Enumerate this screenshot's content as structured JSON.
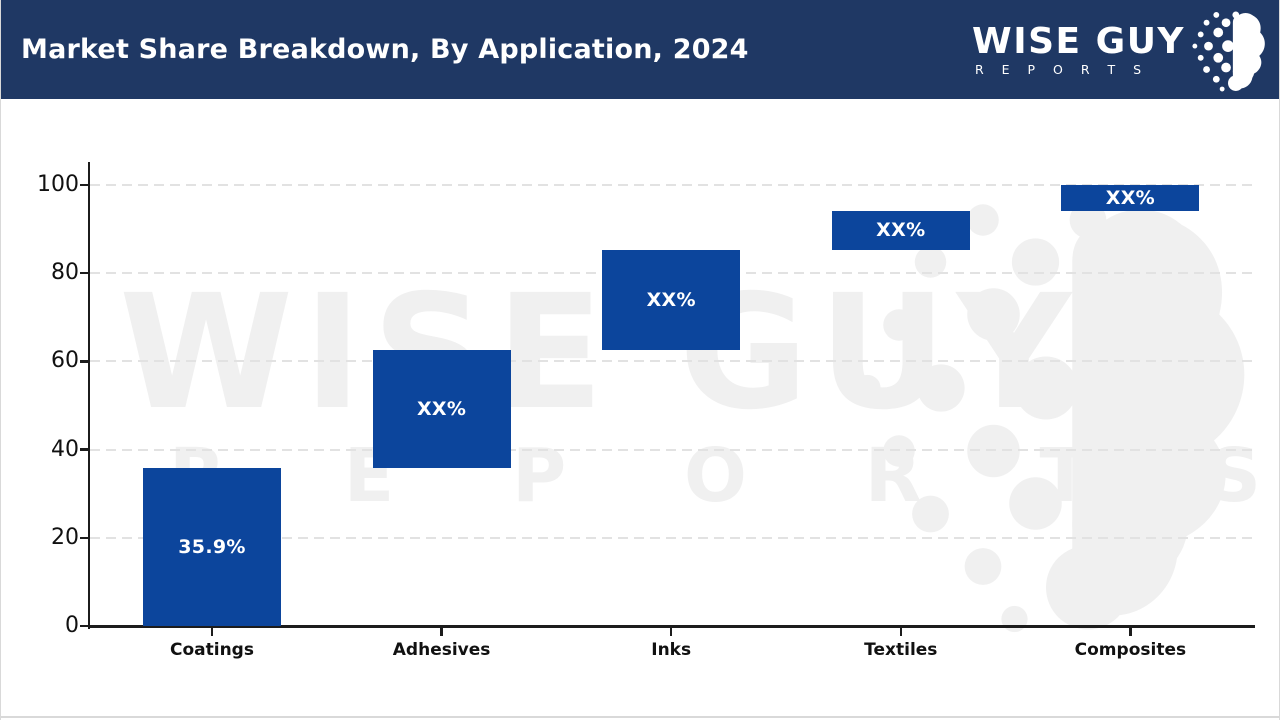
{
  "header": {
    "title": "Market Share Breakdown, By Application, 2024",
    "bg_color": "#1F3864",
    "logo": {
      "wordmark": "WISE GUY",
      "subtext": "R E P O R T S"
    }
  },
  "chart_data": {
    "type": "bar",
    "subtype": "waterfall",
    "title": "Market Share Breakdown, By Application, 2024",
    "categories": [
      "Coatings",
      "Adhesives",
      "Inks",
      "Textiles",
      "Composites"
    ],
    "segments": [
      {
        "category": "Coatings",
        "start": 0,
        "end": 35.9,
        "label": "35.9%"
      },
      {
        "category": "Adhesives",
        "start": 35.9,
        "end": 62.5,
        "label": "XX%"
      },
      {
        "category": "Inks",
        "start": 62.5,
        "end": 85.2,
        "label": "XX%"
      },
      {
        "category": "Textiles",
        "start": 85.2,
        "end": 94.2,
        "label": "XX%"
      },
      {
        "category": "Composites",
        "start": 94.2,
        "end": 100.0,
        "label": "XX%"
      }
    ],
    "yticks": [
      0,
      20,
      40,
      60,
      80,
      100
    ],
    "ylim": [
      0,
      105
    ],
    "xlabel": "",
    "ylabel": "",
    "grid": "horizontal-dashed",
    "legend": "none",
    "colors": {
      "bar": "#0C459C",
      "bar_label": "#FFFFFF",
      "axis": "#1C1C1C",
      "grid": "#E2E2E2",
      "header_bg": "#1F3864",
      "watermark": "#F0F0F0",
      "page_edge": "#D9D9D9"
    }
  },
  "watermark": {
    "wordmark": "WISE GUY",
    "subtext": "R E P O R T S"
  }
}
